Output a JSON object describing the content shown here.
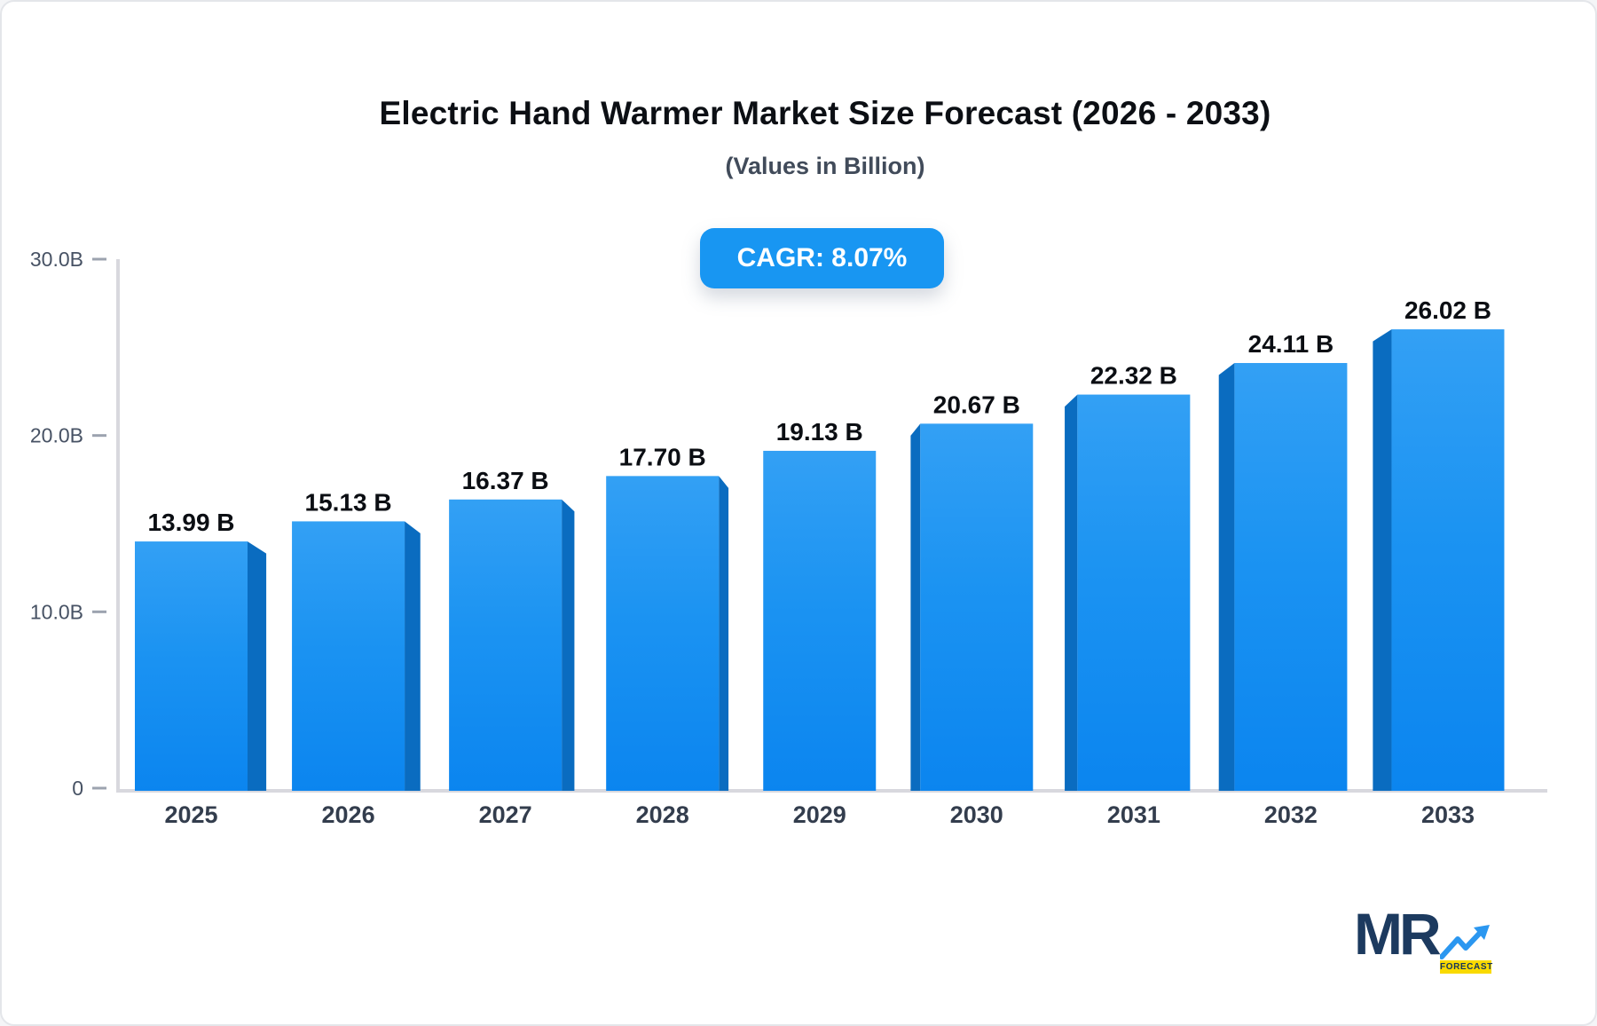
{
  "header": {
    "title": "Electric Hand Warmer Market Size Forecast (2026 - 2033)",
    "subtitle": "(Values in Billion)",
    "cagr_badge": "CAGR: 8.07%"
  },
  "chart_data": {
    "type": "bar",
    "title": "Electric Hand Warmer Market Size Forecast (2026 - 2033)",
    "subtitle": "(Values in Billion)",
    "unit": "Billion",
    "cagr": "8.07%",
    "categories": [
      "2025",
      "2026",
      "2027",
      "2028",
      "2029",
      "2030",
      "2031",
      "2032",
      "2033"
    ],
    "values": [
      13.99,
      15.13,
      16.37,
      17.7,
      19.13,
      20.67,
      22.32,
      24.11,
      26.02
    ],
    "value_labels": [
      "13.99 B",
      "15.13 B",
      "16.37 B",
      "17.70 B",
      "19.13 B",
      "20.67 B",
      "22.32 B",
      "24.11 B",
      "26.02 B"
    ],
    "ylim": [
      0,
      30
    ],
    "yticks": [
      {
        "label": "30.0B",
        "value": 30
      },
      {
        "label": "20.0B",
        "value": 20
      },
      {
        "label": "10.0B",
        "value": 10
      },
      {
        "label": "0",
        "value": 0
      }
    ],
    "grid": false,
    "legend": "none"
  },
  "colors": {
    "bar_gradient_top": "#33a0f4",
    "bar_gradient_mid": "#1b93f2",
    "bar_gradient_bottom": "#0b85ef",
    "bar_side": "#0a6cc0",
    "badge_bg": "#1896f2",
    "axis_line": "#d8d8de",
    "tick_dash": "#9ca3af",
    "tick_text": "#475264",
    "category_text": "#333d4d",
    "value_text": "#0b0e13",
    "logo_navy": "#1c3a5f",
    "logo_blue": "#2b97f0",
    "logo_yellow": "#f9da00"
  },
  "logo": {
    "brand": "MR",
    "tagline": "FORECAST"
  }
}
